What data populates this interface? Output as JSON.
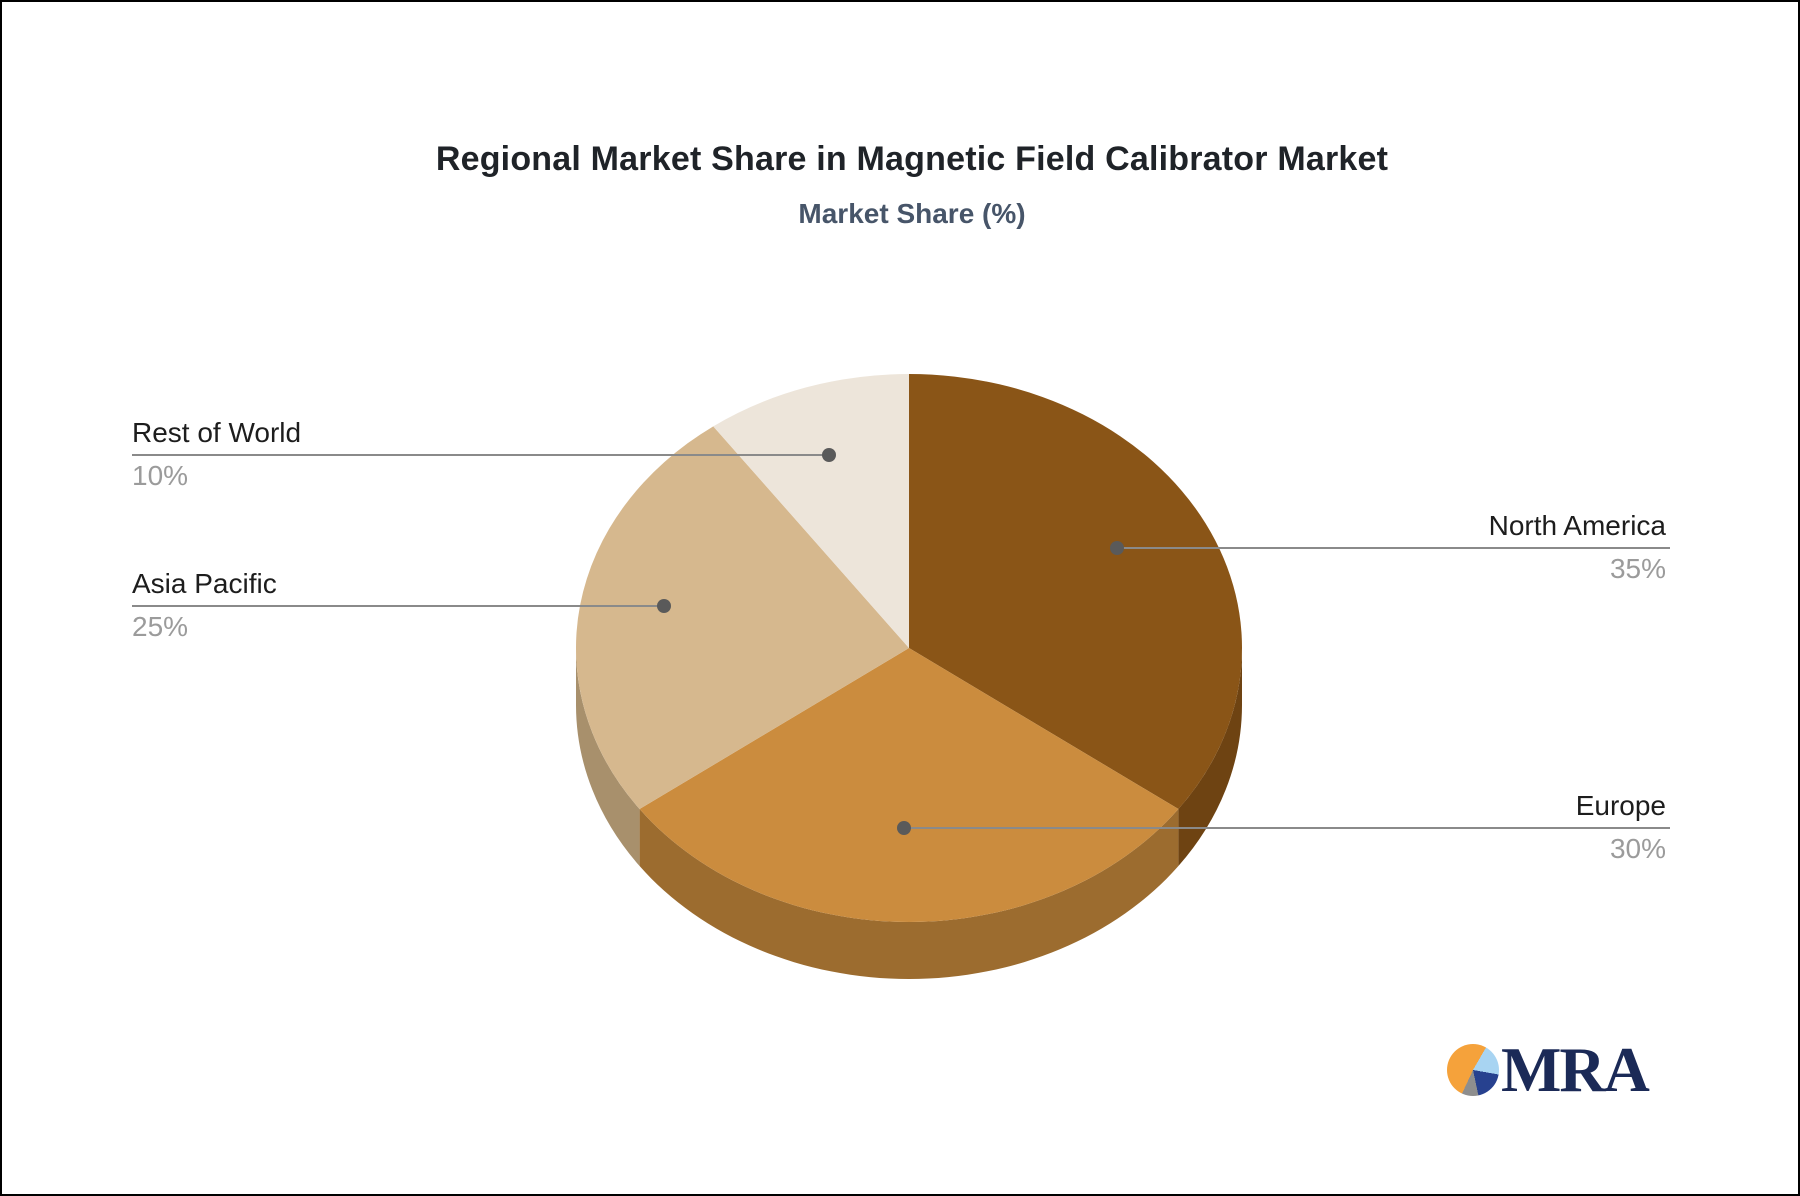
{
  "header": {
    "title": "Regional Market Share in Magnetic Field Calibrator Market",
    "subtitle": "Market Share (%)"
  },
  "chart_data": {
    "type": "pie",
    "title": "Regional Market Share in Magnetic Field Calibrator Market",
    "subtitle": "Market Share (%)",
    "unit": "%",
    "effect": "3d",
    "start_angle_deg": 0,
    "direction": "clockwise",
    "legend_position": "callout-labels",
    "slices": [
      {
        "label": "North America",
        "value": 35,
        "display": "35%",
        "color": "#8A5517",
        "side_color": "#6E4312"
      },
      {
        "label": "Europe",
        "value": 30,
        "display": "30%",
        "color": "#CB8C3E",
        "side_color": "#9C6C2F"
      },
      {
        "label": "Asia Pacific",
        "value": 25,
        "display": "25%",
        "color": "#D6B88E",
        "side_color": "#A8906C"
      },
      {
        "label": "Rest of World",
        "value": 10,
        "display": "10%",
        "color": "#EDE5DA",
        "side_color": "#C2B5A5"
      }
    ],
    "callout_line_color": "#8a8a8a",
    "callout_dot_color": "#5a5a5a",
    "label_color": "#1d1d1d",
    "value_color": "#9b9b9b"
  },
  "logo": {
    "text": "MRA",
    "text_color": "#1b2a57",
    "icon_colors": {
      "orange": "#F5A23B",
      "light_blue": "#A8D4F2",
      "navy": "#27418F",
      "gray": "#8E8E8E"
    }
  }
}
